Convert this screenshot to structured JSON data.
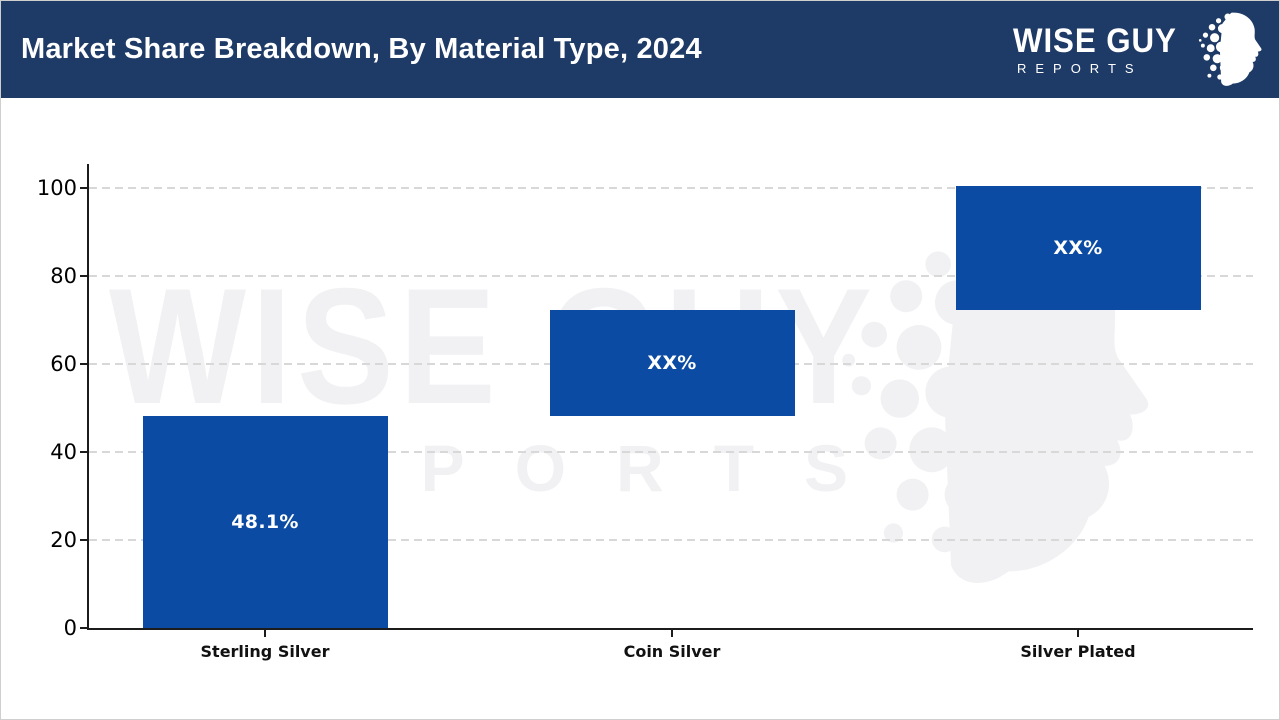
{
  "header": {
    "title": "Market Share Breakdown, By Material Type, 2024",
    "logo": {
      "brand": "WISE GUY",
      "sub": "REPORTS",
      "face_icon": "face-profile-dots"
    }
  },
  "watermark": {
    "line1": "WISE GUY",
    "line2": "REPORTS"
  },
  "colors": {
    "header_bg": "#1e3a66",
    "bar": "#0b4ba3",
    "grid": "#d8d8d8",
    "axis": "#1c1c1c",
    "bar_label": "#ffffff",
    "title_text": "#ffffff",
    "watermark": "#f1f1f4",
    "xlabel_text": "#111111",
    "ylabel_text": "#000000"
  },
  "chart_data": {
    "type": "bar",
    "subtype": "floating-stacked-segments",
    "title": "Market Share Breakdown, By Material Type, 2024",
    "xlabel": "",
    "ylabel": "",
    "ylim": [
      0,
      105.5
    ],
    "yticks": [
      0,
      20,
      40,
      60,
      80,
      100
    ],
    "grid": "horizontal-dashed",
    "legend": "none",
    "categories": [
      "Sterling Silver",
      "Coin Silver",
      "Silver Plated"
    ],
    "segments": [
      {
        "category": "Sterling Silver",
        "start": 0,
        "end": 48.1,
        "label": "48.1%",
        "value": 48.1
      },
      {
        "category": "Coin Silver",
        "start": 48.1,
        "end": 72.3,
        "label": "XX%",
        "value_masked": true,
        "value_estimate": 24.2
      },
      {
        "category": "Silver Plated",
        "start": 72.3,
        "end": 100.4,
        "label": "XX%",
        "value_masked": true,
        "value_estimate": 28.1
      }
    ]
  }
}
